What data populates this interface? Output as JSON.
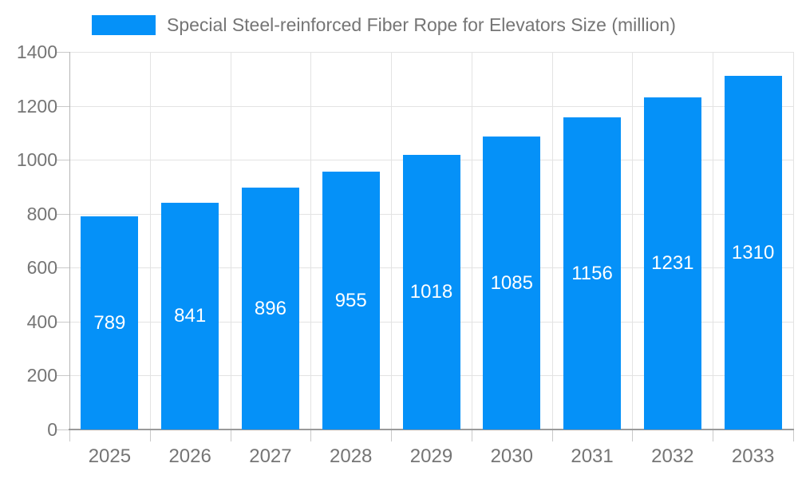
{
  "chart_data": {
    "type": "bar",
    "legend": "Special Steel-reinforced Fiber Rope for Elevators Size (million)",
    "legend_position": "top",
    "categories": [
      "2025",
      "2026",
      "2027",
      "2028",
      "2029",
      "2030",
      "2031",
      "2032",
      "2033"
    ],
    "values": [
      789,
      841,
      896,
      955,
      1018,
      1085,
      1156,
      1231,
      1310
    ],
    "xlabel": "",
    "ylabel": "",
    "ylim": [
      0,
      1400
    ],
    "yticks": [
      0,
      200,
      400,
      600,
      800,
      1000,
      1200,
      1400
    ],
    "grid": true,
    "colors": {
      "bar": "#0591f8",
      "bar_value_text": "#ffffff",
      "axis_text": "#757575",
      "gridline": "#e3e3e3",
      "axis_line": "#9a9a9a",
      "tick": "#c9c9c9",
      "left_axis_line": "#b5b5b5",
      "background": "#ffffff"
    }
  }
}
